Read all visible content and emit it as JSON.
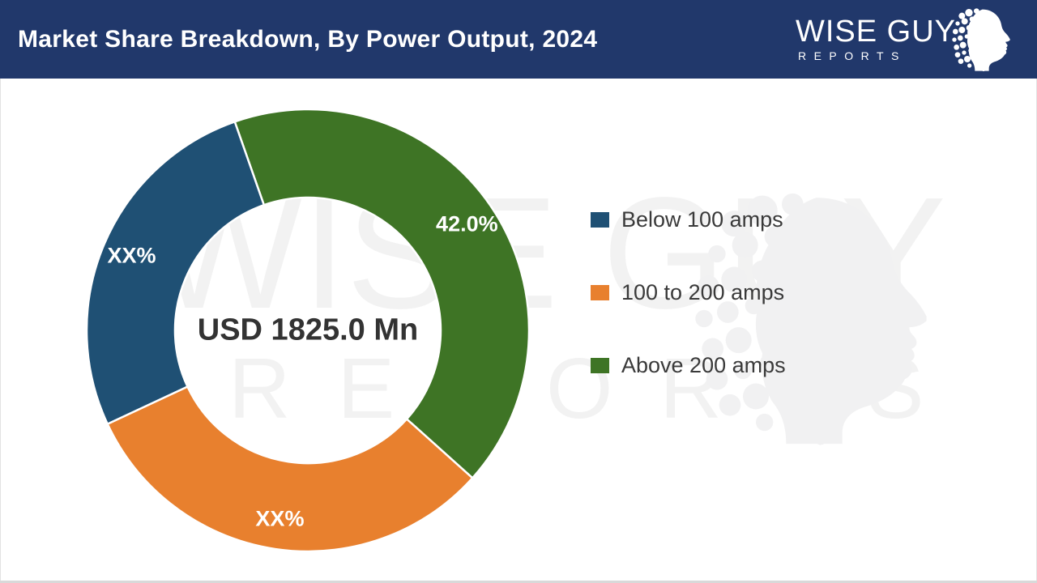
{
  "header": {
    "title": "Market Share Breakdown, By Power Output, 2024",
    "logo": {
      "line1": "WISE GUY",
      "line2": "REPORTS",
      "icon": "head-profile-dots-icon"
    }
  },
  "watermark": {
    "line1": "WISE GUY",
    "line2": "REPORTS",
    "icon": "head-profile-dots-icon"
  },
  "chart_data": {
    "type": "pie",
    "subtype": "donut",
    "title": "Market Share Breakdown, By Power Output, 2024",
    "center_label": "USD 1825.0 Mn",
    "total_value_usd_mn": 1825.0,
    "legend_position": "right",
    "direction": "clockwise",
    "start_angle_deg": -19.3,
    "draw_order": [
      2,
      1,
      0
    ],
    "segments": [
      {
        "label": "Below 100 amps",
        "display_value": "XX%",
        "share_pct_est": 26.6,
        "color": "#1f5074"
      },
      {
        "label": "100 to 200 amps",
        "display_value": "XX%",
        "share_pct_est": 31.4,
        "color": "#e8802e"
      },
      {
        "label": "Above 200 amps",
        "display_value": "42.0%",
        "share_pct_est": 42.0,
        "color": "#3e7425"
      }
    ]
  },
  "colors": {
    "header_bg": "#21386b",
    "title_text": "#ffffff",
    "legend_text": "#3a3a3a",
    "center_text": "#333333",
    "watermark": "#f2f2f2",
    "bottom_line": "#d9d9d9"
  }
}
